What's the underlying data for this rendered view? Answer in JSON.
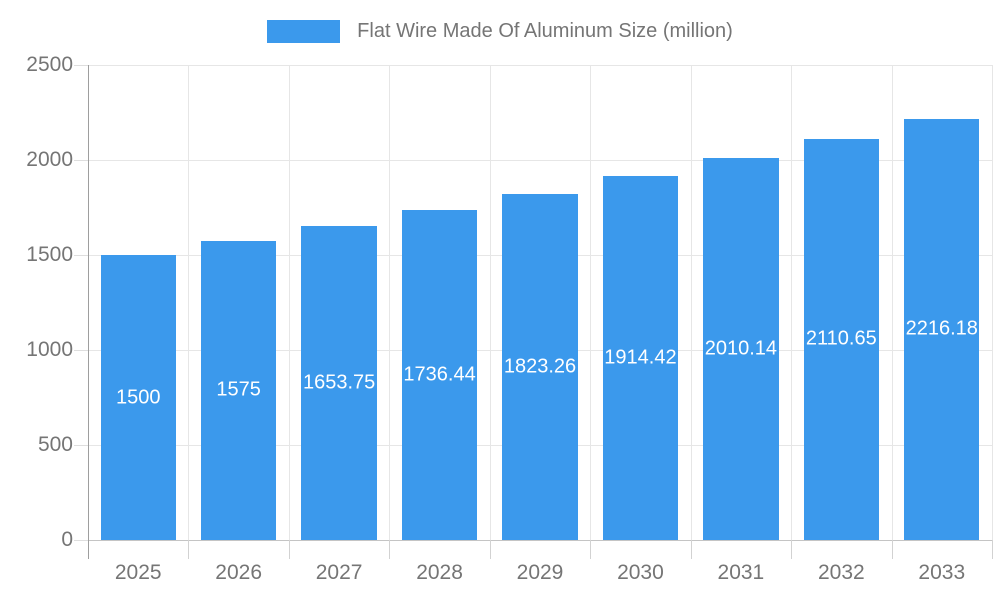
{
  "legend": {
    "label": "Flat Wire Made Of Aluminum Size (million)",
    "swatch_color": "#3B99EC"
  },
  "chart_data": {
    "type": "bar",
    "title": "Flat Wire Made Of Aluminum Size (million)",
    "categories": [
      "2025",
      "2026",
      "2027",
      "2028",
      "2029",
      "2030",
      "2031",
      "2032",
      "2033"
    ],
    "values": [
      1500,
      1575,
      1653.75,
      1736.44,
      1823.26,
      1914.42,
      2010.14,
      2110.65,
      2216.18
    ],
    "value_labels": [
      "1500",
      "1575",
      "1653.75",
      "1736.44",
      "1823.26",
      "1914.42",
      "2010.14",
      "2110.65",
      "2216.18"
    ],
    "xlabel": "",
    "ylabel": "",
    "ylim": [
      0,
      2500
    ],
    "yticks": [
      0,
      500,
      1000,
      1500,
      2000,
      2500
    ],
    "ytick_labels": [
      "0",
      "500",
      "1000",
      "1500",
      "2000",
      "2500"
    ],
    "grid": true,
    "legend_position": "top",
    "bar_color": "#3B99EC",
    "value_label_color": "#ffffff",
    "axis_text_color": "#757575",
    "gridline_color": "#e6e6e6"
  }
}
